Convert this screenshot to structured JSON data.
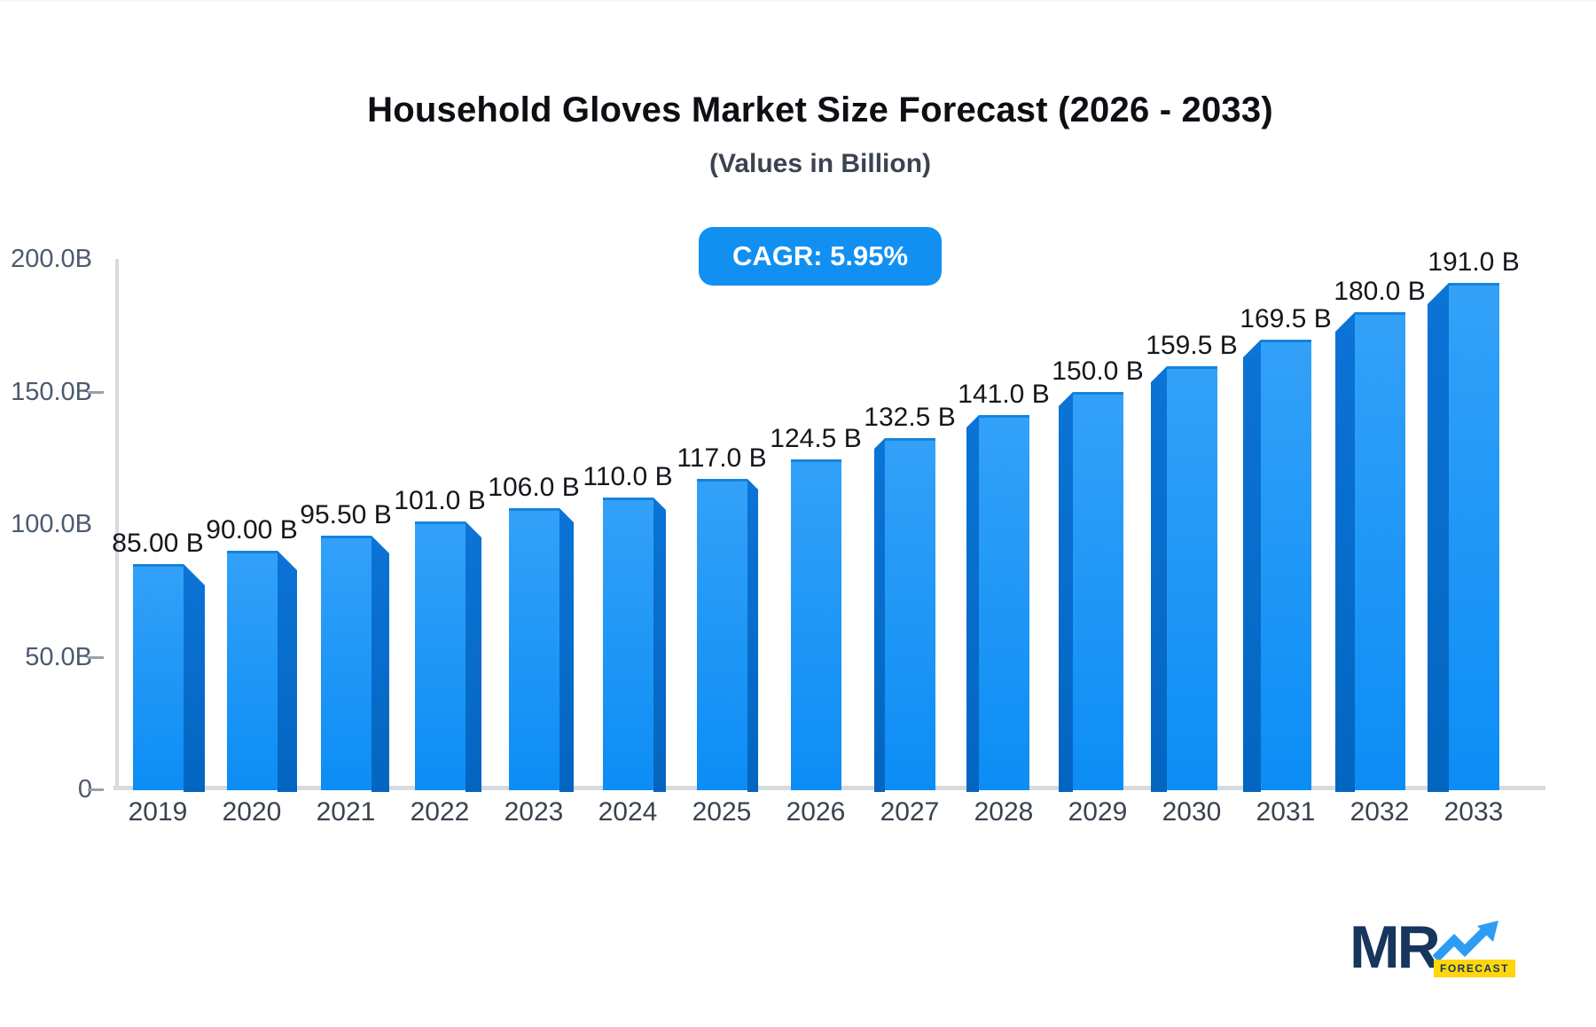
{
  "header": {
    "title": "Household Gloves Market Size Forecast (2026 - 2033)",
    "subtitle": "(Values in Billion)"
  },
  "cagr_badge": {
    "label": "CAGR: 5.95%",
    "bg": "#1190F2",
    "text_color": "#FFFFFF"
  },
  "chart_data": {
    "type": "bar",
    "title": "Household Gloves Market Size Forecast (2026 - 2033)",
    "subtitle": "(Values in Billion)",
    "categories": [
      "2019",
      "2020",
      "2021",
      "2022",
      "2023",
      "2024",
      "2025",
      "2026",
      "2027",
      "2028",
      "2029",
      "2030",
      "2031",
      "2032",
      "2033"
    ],
    "values": [
      85.0,
      90.0,
      95.5,
      101.0,
      106.0,
      110.0,
      117.0,
      124.5,
      132.5,
      141.0,
      150.0,
      159.5,
      169.5,
      180.0,
      191.0
    ],
    "value_labels": [
      "85.00 B",
      "90.00 B",
      "95.50 B",
      "101.0 B",
      "106.0 B",
      "110.0 B",
      "117.0 B",
      "124.5 B",
      "132.5 B",
      "141.0 B",
      "150.0 B",
      "159.5 B",
      "169.5 B",
      "180.0 B",
      "191.0 B"
    ],
    "unit": "B",
    "xlabel": "",
    "ylabel": "",
    "ylim": [
      0,
      200
    ],
    "yticks": [
      {
        "label": "200.0B",
        "value": 200,
        "tick": false
      },
      {
        "label": "150.0B",
        "value": 150,
        "tick": true
      },
      {
        "label": "100.0B",
        "value": 100,
        "tick": false
      },
      {
        "label": "50.0B",
        "value": 50,
        "tick": true
      },
      {
        "label": "0",
        "value": 0,
        "tick": true
      }
    ],
    "grid": false,
    "legend_position": "none",
    "bar_style": {
      "face_top": "#33A1F8",
      "face_bottom": "#0C8DF5",
      "side_top": "#0B74D6",
      "side_bottom": "#0465C0",
      "top_edge": "#1583DD",
      "perspective_center_category": "2026"
    },
    "axis_color": "#D7DADE"
  },
  "logo": {
    "wordmark": "MR",
    "tagline": "FORECAST",
    "navy": "#17365D",
    "arrow_blue": "#2D9CF4",
    "yellow": "#FFD60B"
  }
}
